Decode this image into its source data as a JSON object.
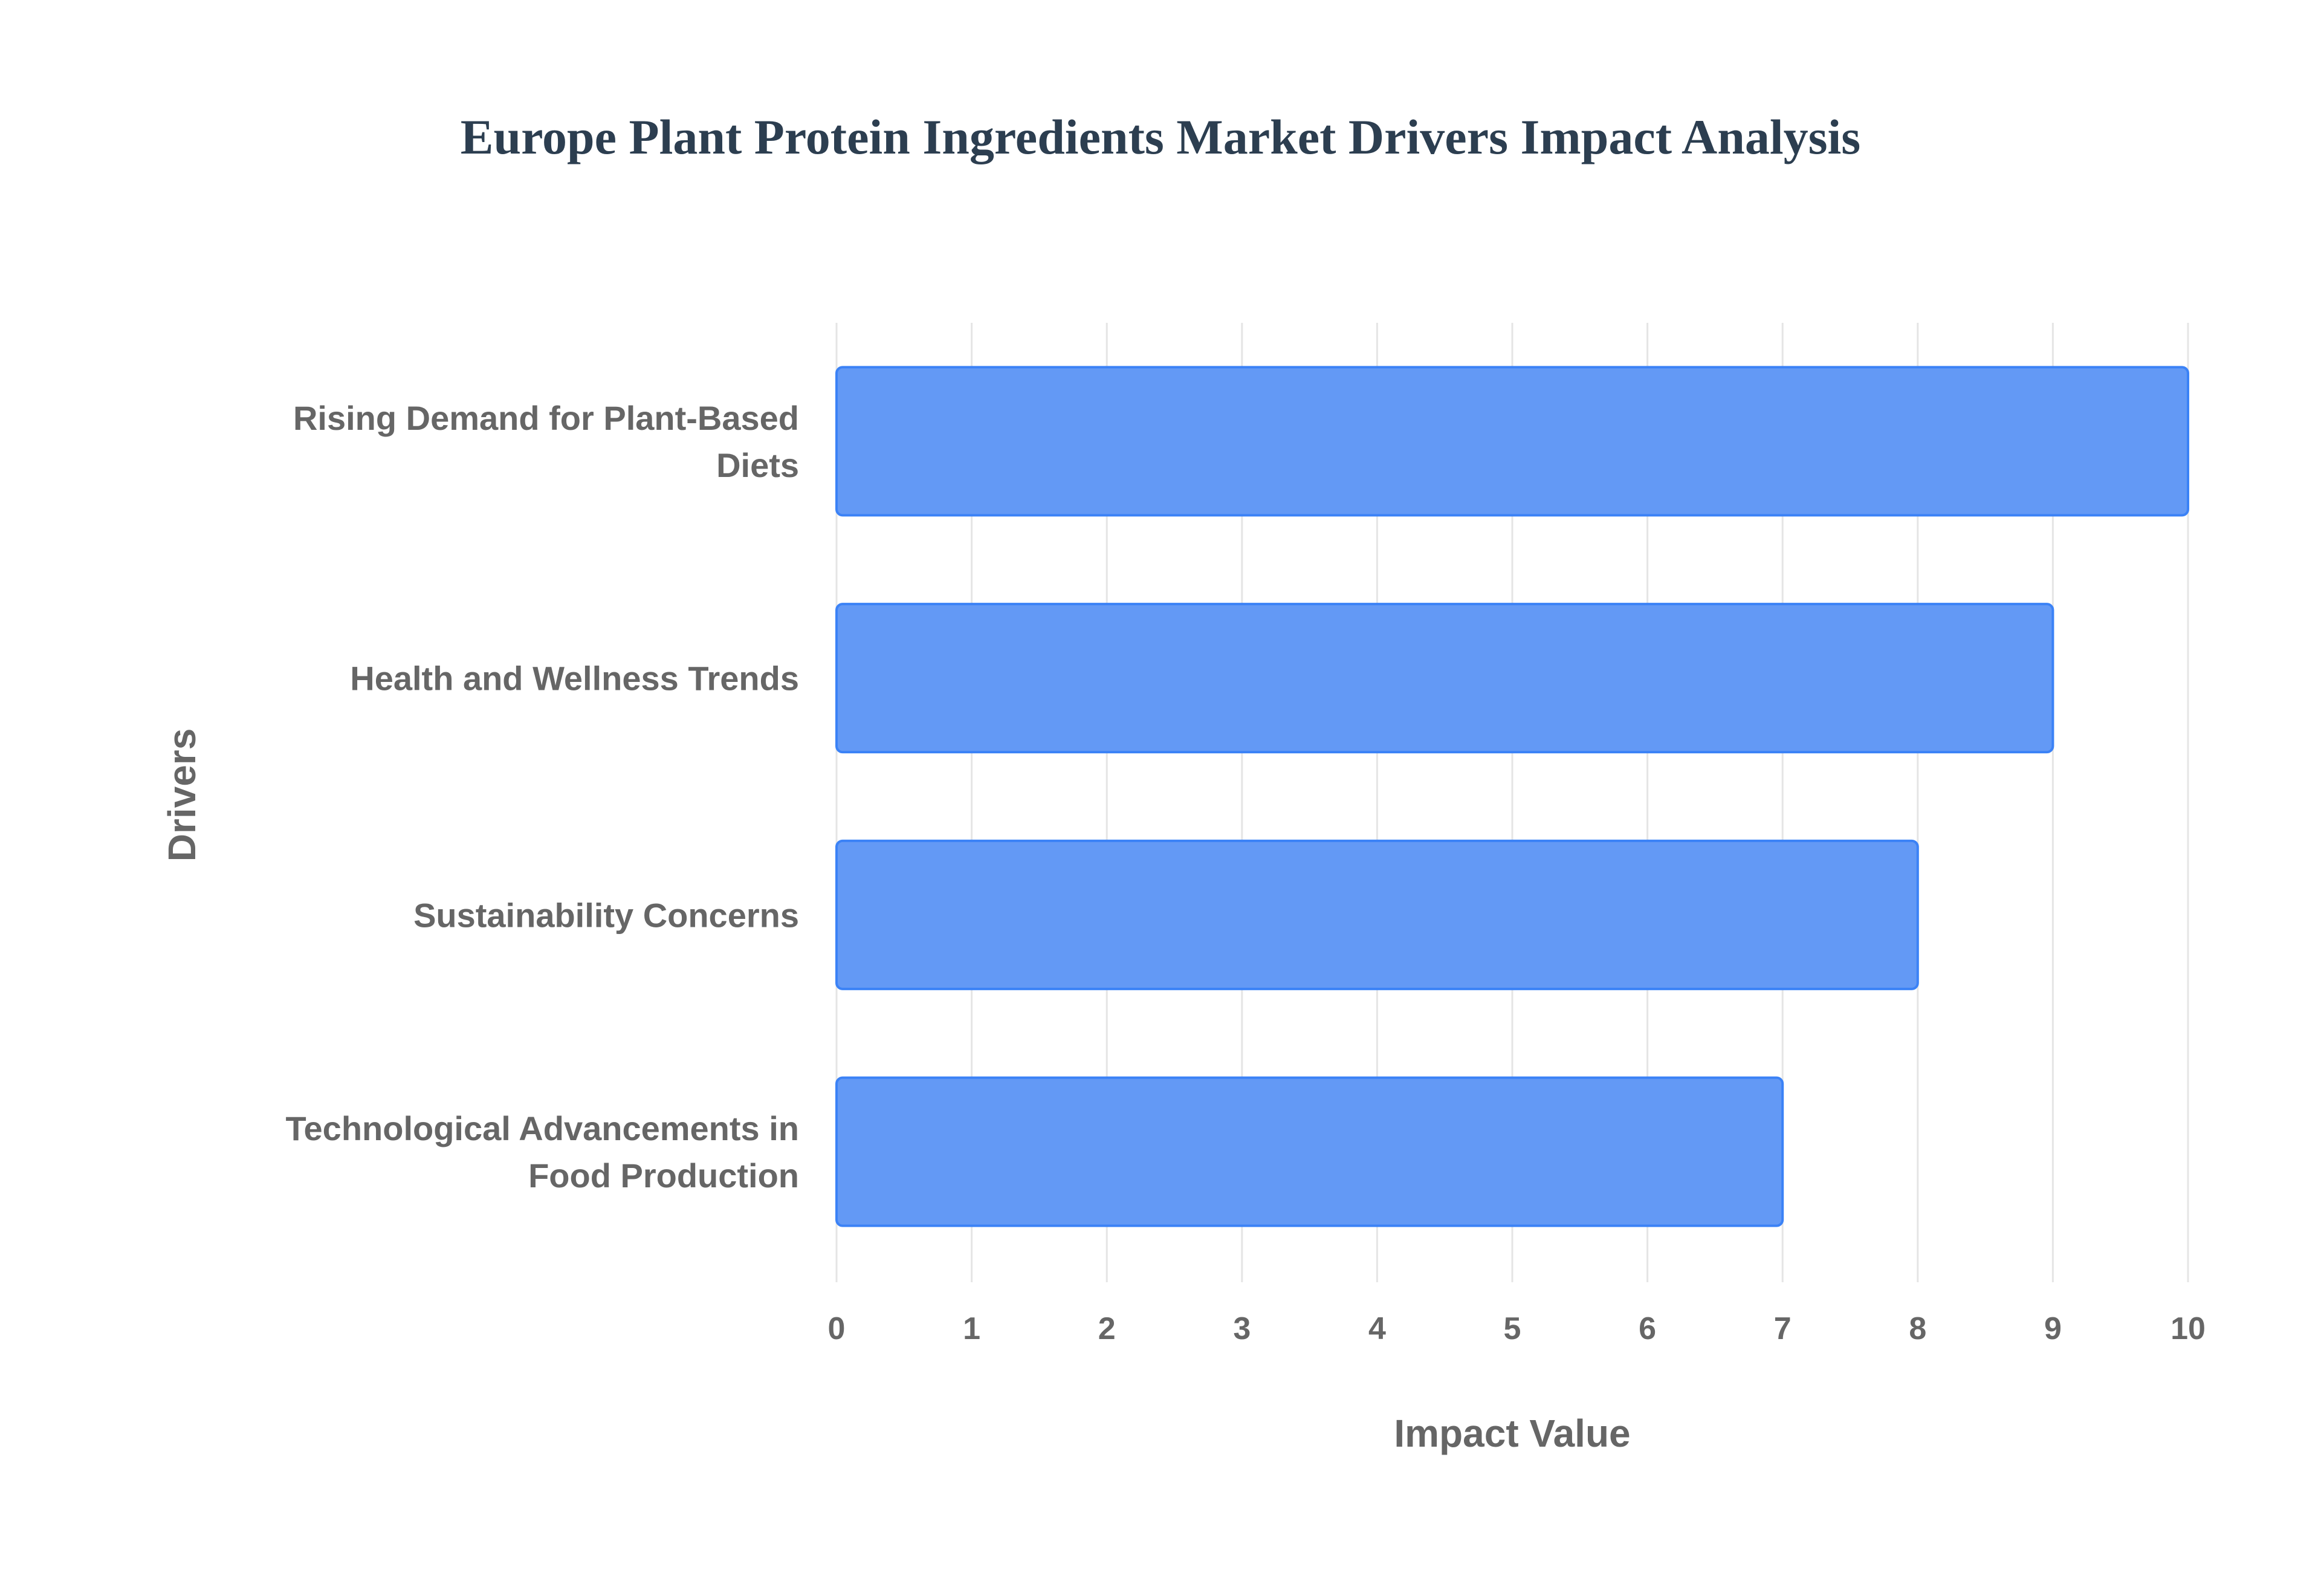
{
  "chart_data": {
    "type": "bar",
    "orientation": "horizontal",
    "title": "Europe Plant Protein Ingredients Market Drivers Impact Analysis",
    "xlabel": "Impact Value",
    "ylabel": "Drivers",
    "categories": [
      [
        "Rising Demand for Plant-Based",
        "Diets"
      ],
      [
        "Health and Wellness Trends"
      ],
      [
        "Sustainability Concerns"
      ],
      [
        "Technological Advancements in",
        "Food Production"
      ]
    ],
    "values": [
      10,
      9,
      8,
      7
    ],
    "xlim": [
      0,
      10
    ],
    "xticks": [
      "0",
      "1",
      "2",
      "3",
      "4",
      "5",
      "6",
      "7",
      "8",
      "9",
      "10"
    ],
    "grid": true,
    "bar_color": "#6399f5",
    "bar_border_color": "#3b82f6"
  }
}
